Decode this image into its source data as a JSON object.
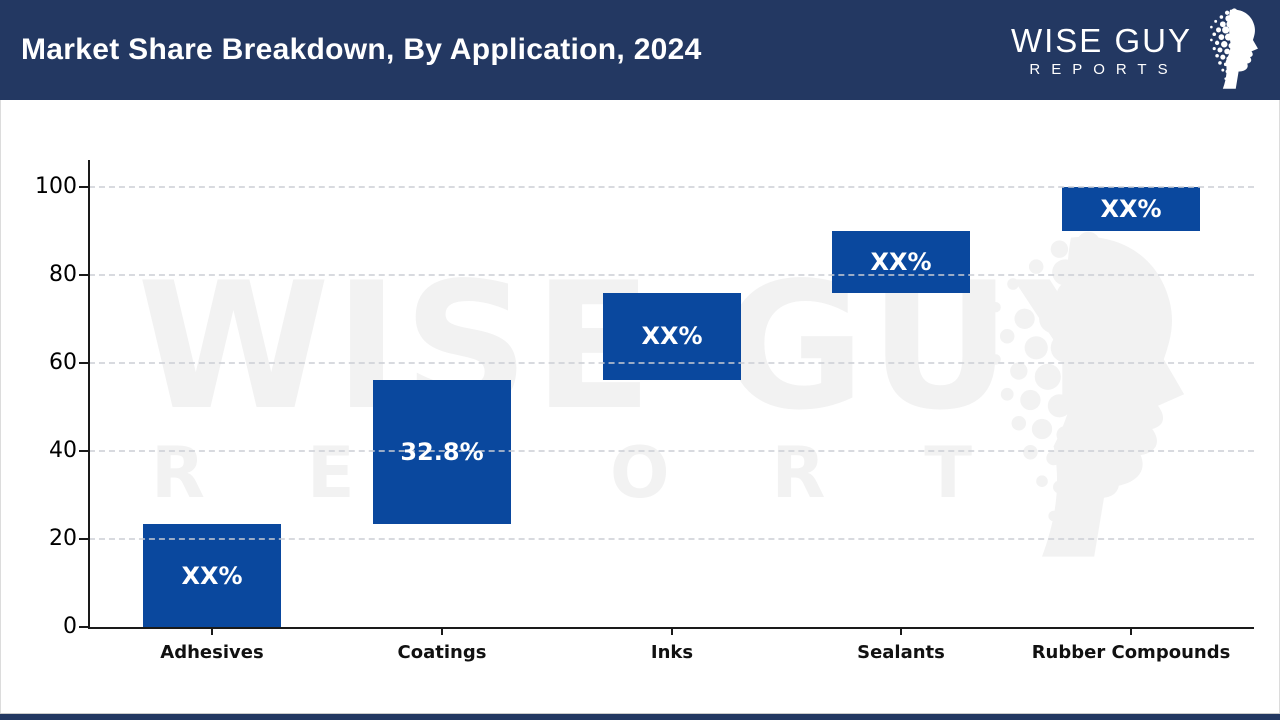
{
  "header": {
    "title": "Market Share Breakdown, By Application, 2024",
    "logo": {
      "line1": "WISE GUY",
      "line2": "REPORTS"
    }
  },
  "watermark": {
    "line1": "WISE GUY",
    "line2": "REPORTS"
  },
  "chart_data": {
    "type": "bar",
    "subtype": "waterfall-floating-bars",
    "title": "Market Share Breakdown, By Application, 2024",
    "categories": [
      "Adhesives",
      "Coatings",
      "Inks",
      "Sealants",
      "Rubber Compounds"
    ],
    "series": [
      {
        "name": "Market Share (%)",
        "segments": [
          {
            "category": "Adhesives",
            "start": 0,
            "end": 23.3,
            "label": "XX%"
          },
          {
            "category": "Coatings",
            "start": 23.3,
            "end": 56.1,
            "label": "32.8%"
          },
          {
            "category": "Inks",
            "start": 56.1,
            "end": 75.8,
            "label": "XX%"
          },
          {
            "category": "Sealants",
            "start": 75.8,
            "end": 89.8,
            "label": "XX%"
          },
          {
            "category": "Rubber Compounds",
            "start": 89.8,
            "end": 100.0,
            "label": "XX%"
          }
        ]
      }
    ],
    "yticks": [
      0,
      20,
      40,
      60,
      80,
      100
    ],
    "ylim": [
      0,
      106
    ],
    "grid": "horizontal-dashed",
    "legend": "none",
    "bar_color": "#0a489e",
    "value_label_color": "#ffffff",
    "grid_color": "#d4d7dc",
    "axis_color": "#1a1a1a",
    "header_color": "#233862"
  }
}
